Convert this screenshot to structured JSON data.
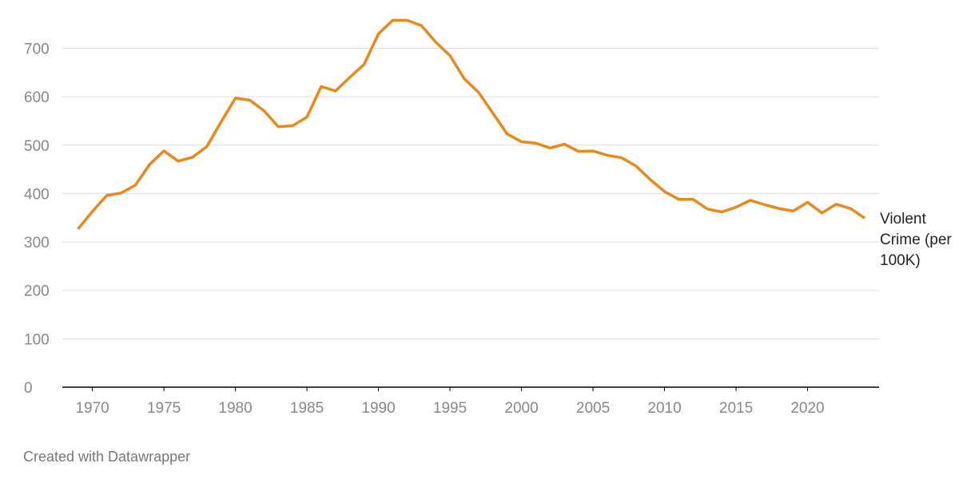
{
  "chart_data": {
    "type": "line",
    "x": [
      1969,
      1970,
      1971,
      1972,
      1973,
      1974,
      1975,
      1976,
      1977,
      1978,
      1979,
      1980,
      1981,
      1982,
      1983,
      1984,
      1985,
      1986,
      1987,
      1988,
      1989,
      1990,
      1991,
      1992,
      1993,
      1994,
      1995,
      1996,
      1997,
      1998,
      1999,
      2000,
      2001,
      2002,
      2003,
      2004,
      2005,
      2006,
      2007,
      2008,
      2009,
      2010,
      2011,
      2012,
      2013,
      2014,
      2015,
      2016,
      2017,
      2018,
      2019,
      2020,
      2021,
      2022,
      2023,
      2024
    ],
    "series": [
      {
        "name": "Violent Crime (per 100K)",
        "color": "#e8891a",
        "values": [
          327,
          363,
          396,
          401,
          417,
          460,
          488,
          467,
          475,
          497,
          548,
          597,
          593,
          571,
          538,
          540,
          558,
          621,
          612,
          640,
          667,
          730,
          758,
          758,
          747,
          713,
          685,
          637,
          609,
          566,
          523,
          507,
          504,
          494,
          502,
          487,
          488,
          479,
          474,
          457,
          429,
          404,
          388,
          388,
          368,
          362,
          372,
          386,
          377,
          369,
          364,
          382,
          360,
          378,
          369,
          349
        ]
      }
    ],
    "xlim": [
      1967.9,
      2025
    ],
    "xticks": [
      1970,
      1975,
      1980,
      1985,
      1990,
      1995,
      2000,
      2005,
      2010,
      2015,
      2020
    ],
    "ylim": [
      0,
      780
    ],
    "yticks": [
      0,
      100,
      200,
      300,
      400,
      500,
      600,
      700
    ],
    "grid": true,
    "footer": "Created with Datawrapper"
  }
}
